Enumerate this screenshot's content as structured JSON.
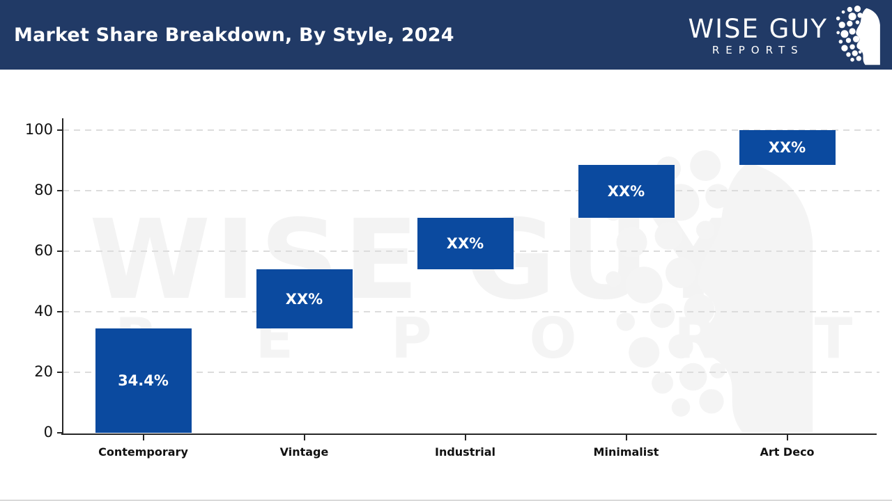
{
  "header": {
    "title": "Market Share Breakdown, By Style, 2024",
    "logo": {
      "line1": "WISE GUY",
      "line2": "REPORTS"
    }
  },
  "watermark": {
    "line1": "WISE GUY",
    "line2": "REPORTS"
  },
  "colors": {
    "header_bg": "#213a66",
    "bar": "#0b4a9f",
    "axis": "#262626",
    "grid": "#dcdcdc",
    "watermark": "#f3f3f3",
    "bar_label": "#ffffff"
  },
  "chart_data": {
    "type": "bar",
    "subtype": "waterfall",
    "title": "Market Share Breakdown, By Style, 2024",
    "categories": [
      "Contemporary",
      "Vintage",
      "Industrial",
      "Minimalist",
      "Art Deco"
    ],
    "segments": [
      {
        "start": 0,
        "end": 34.4,
        "label": "34.4%"
      },
      {
        "start": 34.4,
        "end": 54,
        "label": "XX%"
      },
      {
        "start": 54,
        "end": 71,
        "label": "XX%"
      },
      {
        "start": 71,
        "end": 88.5,
        "label": "XX%"
      },
      {
        "start": 88.5,
        "end": 100,
        "label": "XX%"
      }
    ],
    "xlabel": "",
    "ylabel": "",
    "ylim": [
      0,
      100
    ],
    "yticks": [
      0,
      20,
      40,
      60,
      80,
      100
    ],
    "grid": true,
    "grid_style": "dashed",
    "legend": "none"
  }
}
